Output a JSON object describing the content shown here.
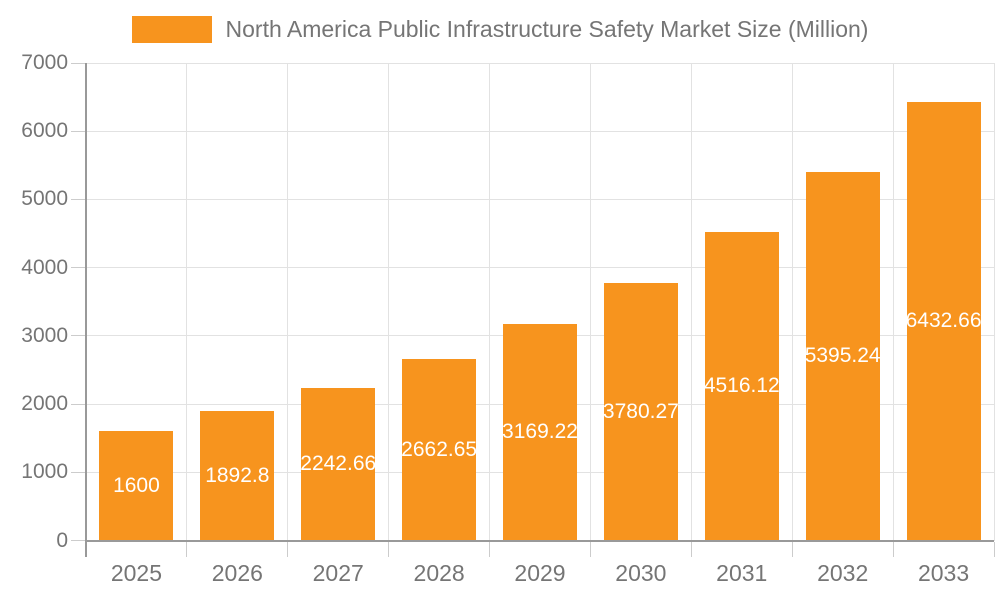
{
  "chart_data": {
    "type": "bar",
    "title": "North America Public Infrastructure Safety Market Size (Million)",
    "legend_position": "top",
    "categories": [
      "2025",
      "2026",
      "2027",
      "2028",
      "2029",
      "2030",
      "2031",
      "2032",
      "2033"
    ],
    "series": [
      {
        "name": "North America Public Infrastructure Safety Market Size (Million)",
        "values": [
          1600,
          1892.8,
          2242.66,
          2662.65,
          3169.22,
          3780.27,
          4516.12,
          5395.24,
          6432.66
        ],
        "labels": [
          "1600",
          "1892.8",
          "2242.66",
          "2662.65",
          "3169.22",
          "3780.27",
          "4516.12",
          "5395.24",
          "6432.66"
        ],
        "color": "#F7941E"
      }
    ],
    "xlabel": "",
    "ylabel": "",
    "ylim": [
      0,
      7000
    ],
    "yticks": [
      0,
      1000,
      2000,
      3000,
      4000,
      5000,
      6000,
      7000
    ],
    "grid": true
  },
  "style_colors": {
    "bar": "#F7941E",
    "grid_line": "#E2E2E2",
    "axis_line": "#999999",
    "tick_line": "#CCCCCC",
    "axis_text": "#757575",
    "bar_label_text": "#FFFFFF",
    "background": "#FFFFFF"
  }
}
